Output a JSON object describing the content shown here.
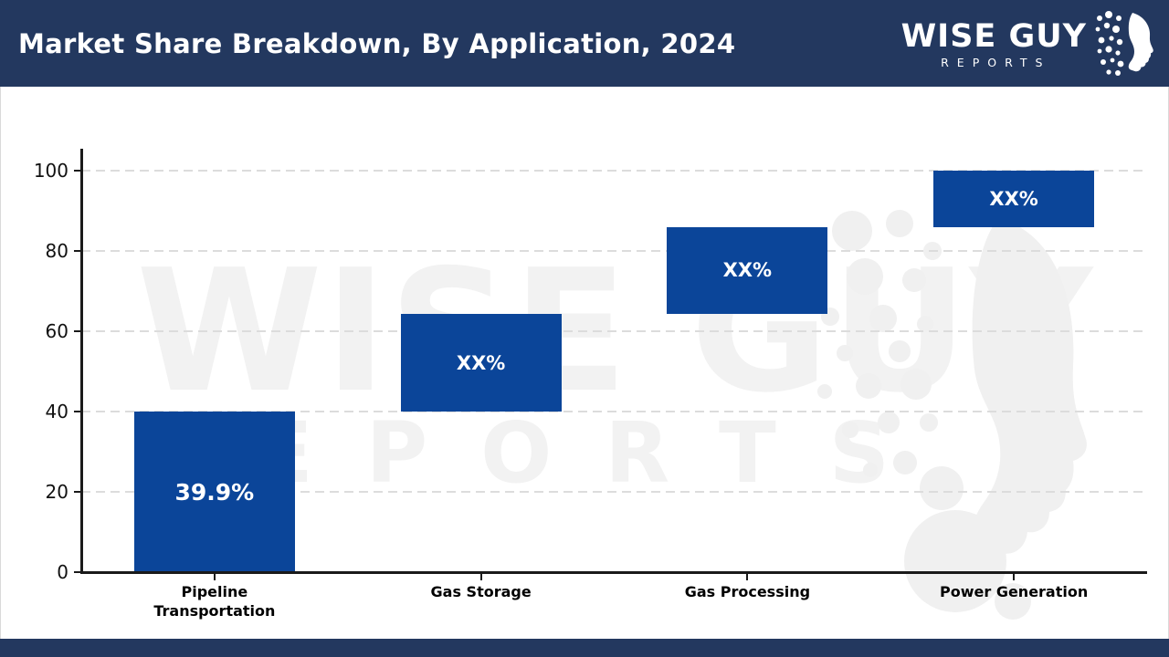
{
  "header": {
    "title": "Market Share Breakdown, By Application, 2024",
    "logo_line1": "WISE GUY",
    "logo_line2": "REPORTS",
    "bg_color": "#23385F"
  },
  "watermark": {
    "line1": "WISE GUY",
    "line2": "REPORTS"
  },
  "chart_data": {
    "type": "bar",
    "subtype": "floating-waterfall",
    "title": "Market Share Breakdown, By Application, 2024",
    "categories": [
      "Pipeline Transportation",
      "Gas Storage",
      "Gas Processing",
      "Power Generation"
    ],
    "segments": [
      {
        "category": "Pipeline Transportation",
        "start": 0,
        "end": 39.9,
        "data_label": "39.9%"
      },
      {
        "category": "Gas Storage",
        "start": 39.9,
        "end": 64.4,
        "data_label": "XX%"
      },
      {
        "category": "Gas Processing",
        "start": 64.4,
        "end": 86.0,
        "data_label": "XX%"
      },
      {
        "category": "Power Generation",
        "start": 86.0,
        "end": 100,
        "data_label": "XX%"
      }
    ],
    "ylim": [
      0,
      100
    ],
    "yticks": [
      0,
      20,
      40,
      60,
      80,
      100
    ],
    "xlabel": "",
    "ylabel": "",
    "bar_color": "#0B4599",
    "grid": "horizontal-dashed",
    "legend": "none"
  }
}
